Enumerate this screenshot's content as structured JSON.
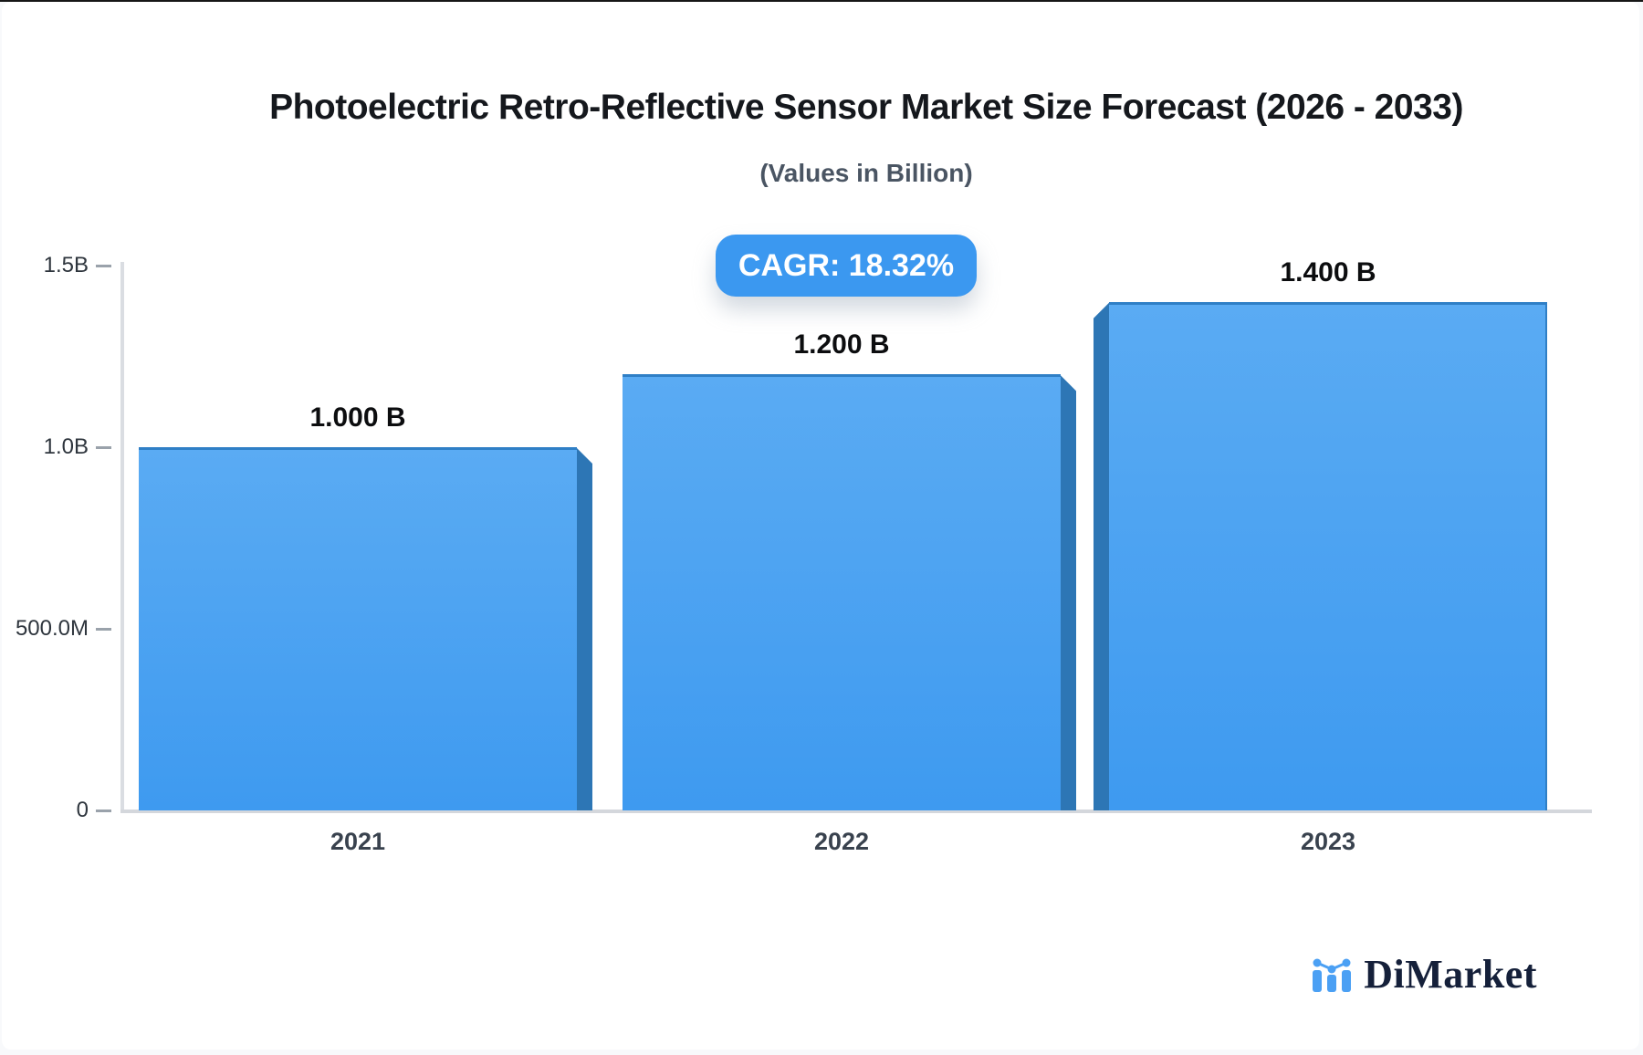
{
  "page": {
    "title": "Photoelectric Retro-Reflective Sensor Market Size Forecast (2026 - 2033)",
    "subtitle": "(Values in Billion)",
    "cagr_badge": "CAGR: 18.32%",
    "brand": "DiMarket"
  },
  "colors": {
    "badge_bg": "#3b98f0",
    "bar_gradient_top": "#5aabf3",
    "bar_gradient_bottom": "#3e9af0",
    "bar_side": "#2d76b5",
    "bar_edge": "#2f7fc6",
    "logo_blue": "#4ba0f4",
    "logo_navy": "#15203a"
  },
  "chart_data": {
    "type": "bar",
    "categories": [
      "2021",
      "2022",
      "2023"
    ],
    "values": [
      1.0,
      1.2,
      1.4
    ],
    "value_labels": [
      "1.000 B",
      "1.200 B",
      "1.400 B"
    ],
    "title": "Photoelectric Retro-Reflective Sensor Market Size Forecast (2026 - 2033)",
    "subtitle": "(Values in Billion)",
    "annotation": "CAGR: 18.32%",
    "xlabel": "",
    "ylabel": "",
    "ylim": [
      0,
      1.5
    ],
    "yticks": [
      {
        "label": "1.5B",
        "value": 1.5
      },
      {
        "label": "1.0B",
        "value": 1.0
      },
      {
        "label": "500.0M",
        "value": 0.5
      },
      {
        "label": "0",
        "value": 0
      }
    ],
    "grid": false,
    "legend": false,
    "shadow_sides": [
      "right",
      "right",
      "left"
    ]
  }
}
